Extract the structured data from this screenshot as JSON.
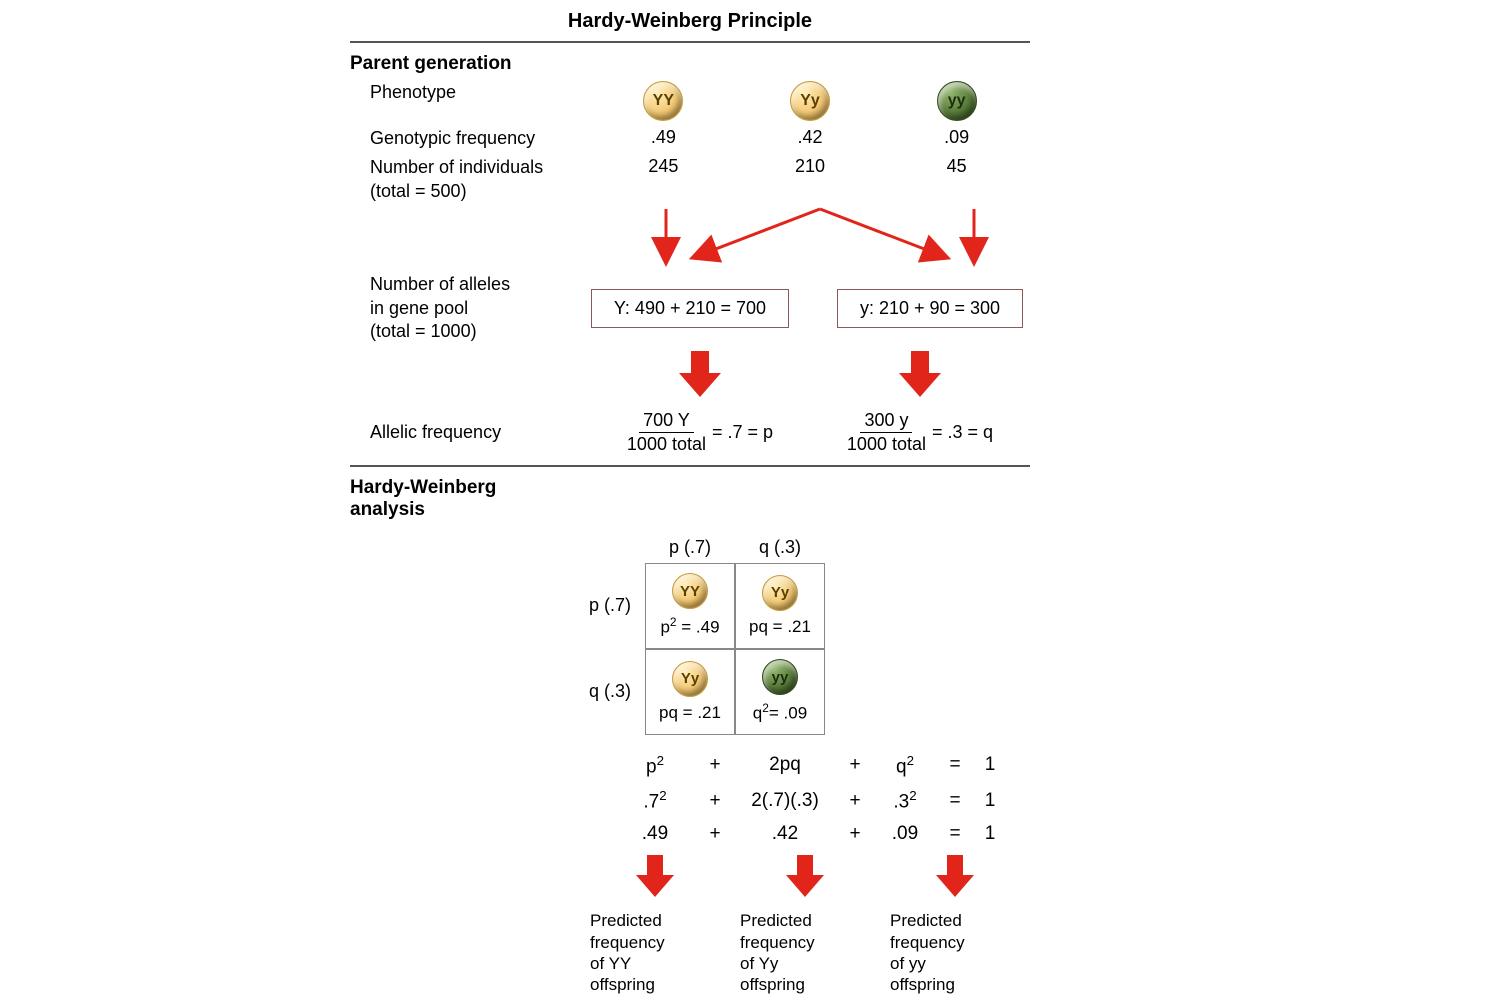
{
  "title": "Hardy-Weinberg Principle",
  "colors": {
    "yellowFill": "#f3c771",
    "yellowBorder": "#c79a33",
    "greenFill": "#567a37",
    "greenBorder": "#2f4a1a",
    "arrow": "#e1251b",
    "boxBorder": "#8a5a5a",
    "rule": "#555555"
  },
  "parent": {
    "header": "Parent generation",
    "labels": {
      "phenotype": "Phenotype",
      "genoFreq": "Genotypic frequency",
      "numInd": "Number of individuals\n(total = 500)",
      "numAlleles": "Number of alleles\nin gene pool\n(total = 1000)",
      "allelicFreq": "Allelic frequency"
    },
    "genotypes": [
      {
        "label": "YY",
        "kind": "yellowBold",
        "freq": ".49",
        "count": "245"
      },
      {
        "label": "Yy",
        "kind": "yellowNormal",
        "freq": ".42",
        "count": "210"
      },
      {
        "label": "yy",
        "kind": "green",
        "freq": ".09",
        "count": "45"
      }
    ],
    "poolY": "Y: 490 + 210 = 700",
    "pooly": "y: 210 + 90 = 300",
    "freqY": {
      "num": "700 Y",
      "den": "1000 total",
      "rhs": " = .7 = p"
    },
    "freqy": {
      "num": "300 y",
      "den": "1000 total",
      "rhs": " = .3 = q"
    }
  },
  "analysis": {
    "header": "Hardy-Weinberg\nanalysis",
    "pLabel": "p (.7)",
    "qLabel": "q (.3)",
    "cells": [
      {
        "label": "YY",
        "kind": "yellowBold",
        "text": "p² = .49"
      },
      {
        "label": "Yy",
        "kind": "yellowNormal",
        "text": "pq = .21"
      },
      {
        "label": "Yy",
        "kind": "yellowNormal",
        "text": "pq = .21"
      },
      {
        "label": "yy",
        "kind": "green",
        "text": "q²= .09"
      }
    ],
    "eq": {
      "r1": [
        "p²",
        "+",
        "2pq",
        "+",
        "q²",
        "=",
        "1"
      ],
      "r2": [
        ".7²",
        "+",
        "2(.7)(.3)",
        "+",
        ".3²",
        "=",
        "1"
      ],
      "r3": [
        ".49",
        "+",
        ".42",
        "+",
        ".09",
        "=",
        "1"
      ]
    },
    "predict": [
      "Predicted\nfrequency\nof YY\noffspring",
      "Predicted\nfrequency\nof Yy\noffspring",
      "Predicted\nfrequency\nof yy\noffspring"
    ]
  }
}
